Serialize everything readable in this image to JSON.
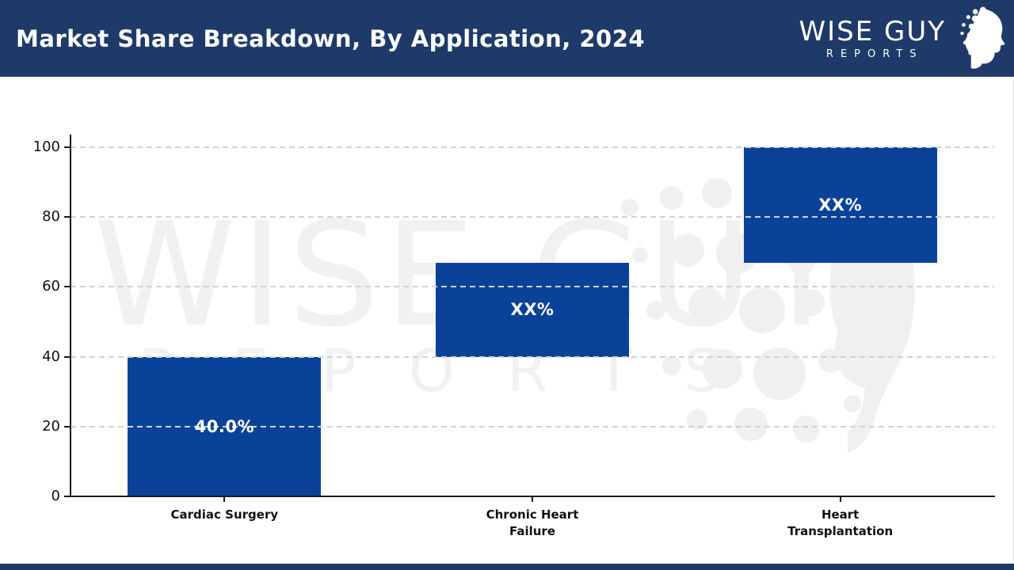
{
  "header": {
    "title": "Market Share Breakdown, By Application, 2024",
    "logo": {
      "line1": "WISE GUY",
      "line2": "REPORTS"
    }
  },
  "watermark": {
    "line1": "WISE GUY",
    "line2": "REPORTS"
  },
  "chart_data": {
    "type": "bar",
    "variant": "waterfall",
    "title": "Market Share Breakdown, By Application, 2024",
    "xlabel": "",
    "ylabel": "",
    "ylim": [
      0,
      100
    ],
    "yticks": [
      0,
      20,
      40,
      60,
      80,
      100
    ],
    "grid": "horizontal-dashed",
    "legend": "none",
    "bars": [
      {
        "category": "Cardiac Surgery",
        "category_lines": [
          "Cardiac Surgery"
        ],
        "start": 0,
        "end": 40,
        "size": 40,
        "label": "40.0%"
      },
      {
        "category": "Chronic Heart Failure",
        "category_lines": [
          "Chronic Heart",
          "Failure"
        ],
        "start": 40,
        "end": 67,
        "size": 27,
        "label": "XX%"
      },
      {
        "category": "Heart Transplantation",
        "category_lines": [
          "Heart",
          "Transplantation"
        ],
        "start": 67,
        "end": 100,
        "size": 33,
        "label": "XX%"
      }
    ]
  },
  "colors": {
    "header_bg": "#1f3a68",
    "footer_bg": "#1f3a68",
    "bar": "#0a4299",
    "bar_label": "#ffffff",
    "axis": "#1a1a1a",
    "gridline": "#d2d2d2",
    "watermark": "#f1f1f1",
    "page_bg": "#ffffff"
  }
}
